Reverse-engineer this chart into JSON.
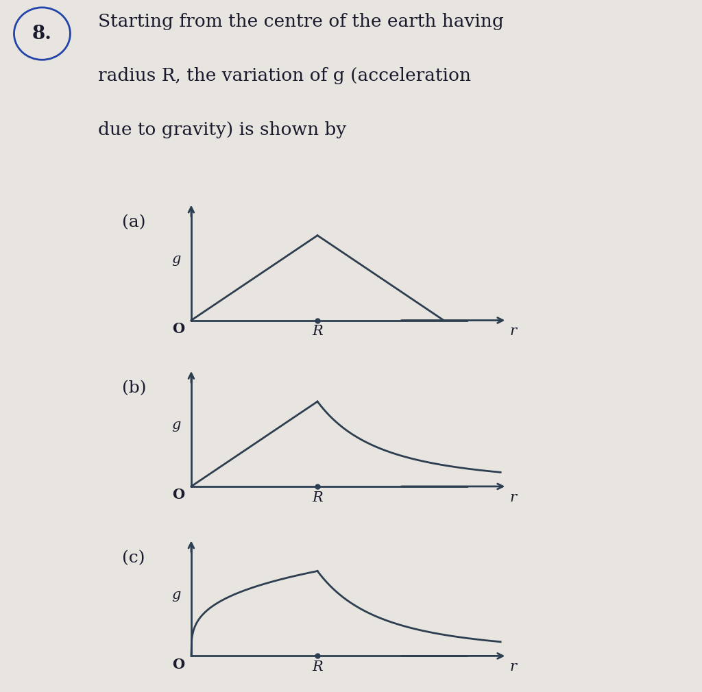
{
  "title_line1": "Starting from the centre of the earth having",
  "title_line2": "radius R, the variation of g (acceleration",
  "title_line3": "due to gravity) is shown by",
  "question_number": "8.",
  "label_a": "(a)",
  "label_b": "(b)",
  "label_c": "(c)",
  "ylabel": "g",
  "xlabel": "r",
  "R_label": "R",
  "O_label": "O",
  "bg_color": "#e8e4df",
  "line_color": "#2c3e50",
  "text_color": "#1a1a2e",
  "figsize": [
    10.24,
    10.1
  ],
  "dpi": 100
}
